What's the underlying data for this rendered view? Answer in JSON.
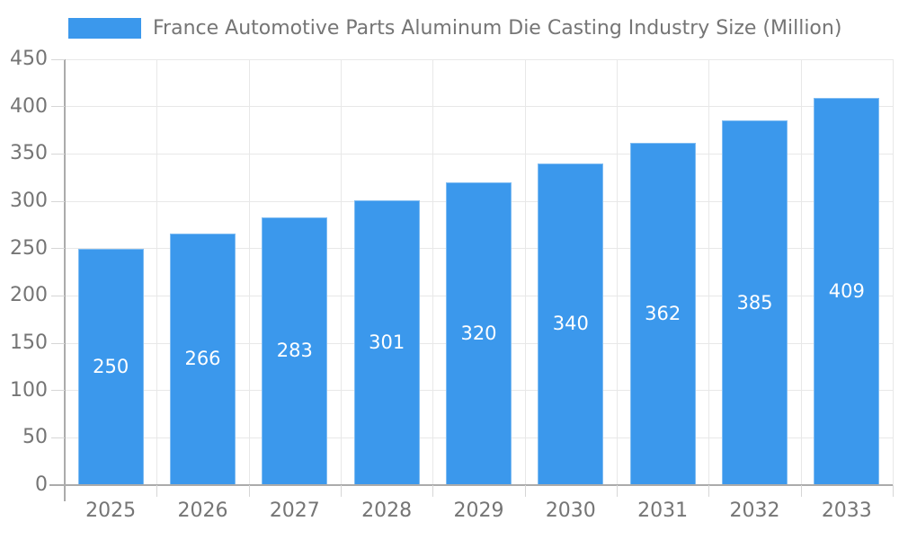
{
  "legend": {
    "label": "France Automotive Parts Aluminum Die Casting Industry Size (Million)"
  },
  "chart_data": {
    "type": "bar",
    "title": "France Automotive Parts Aluminum Die Casting Industry Size (Million)",
    "categories": [
      "2025",
      "2026",
      "2027",
      "2028",
      "2029",
      "2030",
      "2031",
      "2032",
      "2033"
    ],
    "series": [
      {
        "name": "France Automotive Parts Aluminum Die Casting Industry Size (Million)",
        "values": [
          250,
          266,
          283,
          301,
          320,
          340,
          362,
          385,
          409
        ]
      }
    ],
    "xlabel": "",
    "ylabel": "",
    "ylim": [
      0,
      450
    ],
    "yticks": [
      0,
      50,
      100,
      150,
      200,
      250,
      300,
      350,
      400,
      450
    ],
    "grid": true,
    "legend_position": "top-left",
    "bar_labels_visible": true,
    "bar_label_placement": "center-of-bar",
    "colors": {
      "bar": "#3B98EC",
      "bar_border": "#7FBCF2",
      "bar_label": "#FFFFFF",
      "grid": "#E8E8E8",
      "axis": "#ABABAB",
      "tick": "#D6D6D6",
      "text": "#757575",
      "background": "#FFFFFF"
    }
  }
}
